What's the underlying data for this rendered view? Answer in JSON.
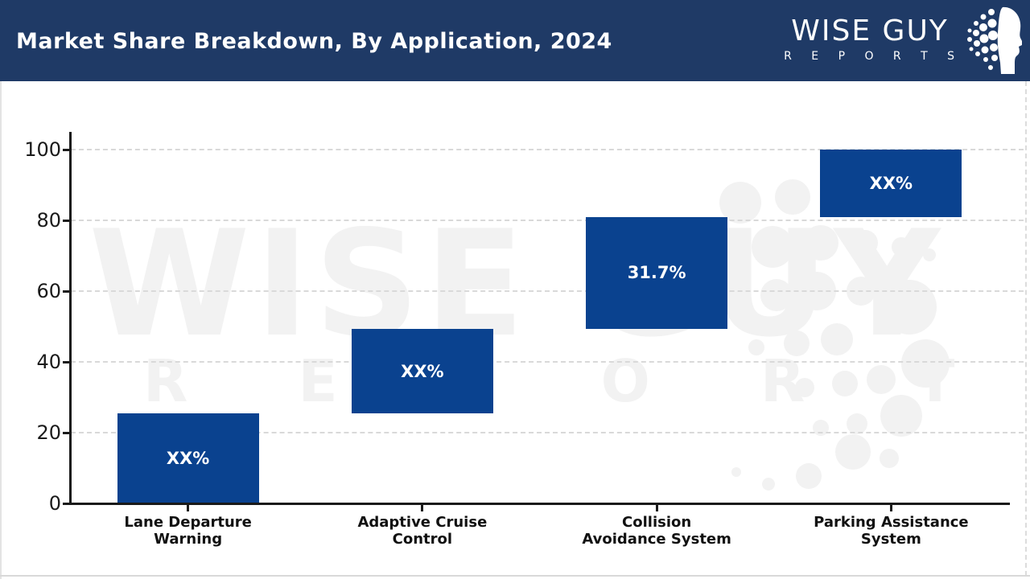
{
  "header": {
    "title": "Market Share Breakdown, By Application, 2024",
    "bg_color": "#1f3a66",
    "logo": {
      "brand": "WISE GUY",
      "sub": "R E P O R T S"
    }
  },
  "watermark": {
    "line1": "WISE GUY",
    "line2": "R E P O R T S"
  },
  "chart_data": {
    "type": "bar",
    "subtype": "floating-segment-waterfall",
    "title": "Market Share Breakdown, By Application, 2024",
    "categories": [
      [
        "Lane Departure",
        "Warning"
      ],
      [
        "Adaptive Cruise",
        "Control"
      ],
      [
        "Collision",
        "Avoidance System"
      ],
      [
        "Parking Assistance",
        "System"
      ]
    ],
    "segments": [
      {
        "start": 0,
        "end": 25.4,
        "label": "XX%"
      },
      {
        "start": 25.4,
        "end": 49.3,
        "label": "XX%"
      },
      {
        "start": 49.3,
        "end": 81.0,
        "label": "31.7%"
      },
      {
        "start": 81.0,
        "end": 100.0,
        "label": "XX%"
      }
    ],
    "yticks": [
      0,
      20,
      40,
      60,
      80,
      100
    ],
    "ylim": [
      0,
      105
    ],
    "bar_color": "#0a428f",
    "bar_label_color": "#ffffff",
    "grid": "horizontal-dashed",
    "legend": "none",
    "xlabel": "",
    "ylabel": ""
  }
}
